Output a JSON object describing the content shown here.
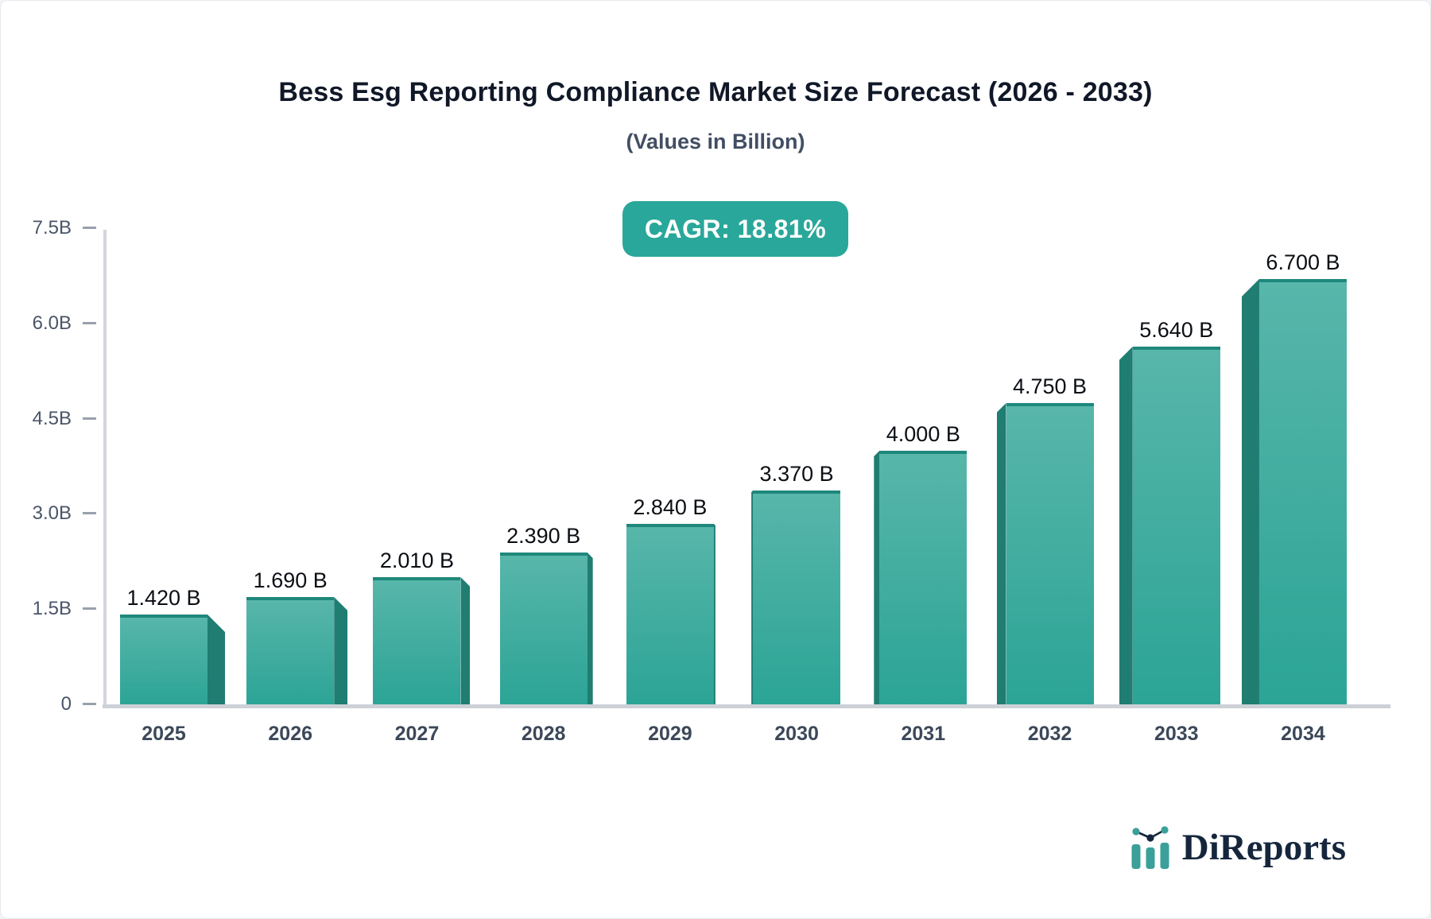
{
  "header": {
    "title": "Bess Esg Reporting Compliance Market Size Forecast (2026 - 2033)",
    "subtitle": "(Values in Billion)"
  },
  "badge": {
    "label": "CAGR: 18.81%"
  },
  "chart_data": {
    "type": "bar",
    "title": "Bess Esg Reporting Compliance Market Size Forecast (2026 - 2033)",
    "subtitle": "(Values in Billion)",
    "cagr": "18.81%",
    "categories": [
      "2025",
      "2026",
      "2027",
      "2028",
      "2029",
      "2030",
      "2031",
      "2032",
      "2033",
      "2034"
    ],
    "values": [
      1.42,
      1.69,
      2.01,
      2.39,
      2.84,
      3.37,
      4.0,
      4.75,
      5.64,
      6.7
    ],
    "value_labels": [
      "1.420 B",
      "1.690 B",
      "2.010 B",
      "2.390 B",
      "2.840 B",
      "3.370 B",
      "4.000 B",
      "4.750 B",
      "5.640 B",
      "6.700 B"
    ],
    "unit": "Billion",
    "xlabel": "",
    "ylabel": "",
    "ytick_labels": [
      "7.5B",
      "6.0B",
      "4.5B",
      "3.0B",
      "1.5B",
      "0"
    ],
    "ytick_values": [
      7.5,
      6.0,
      4.5,
      3.0,
      1.5,
      0
    ],
    "ylim": [
      0,
      7.5
    ],
    "grid": false,
    "legend": false,
    "colors": {
      "bar_front_top": "#58b6aa",
      "bar_front_bottom": "#2ba496",
      "bar_side": "#1f7d72",
      "bar_top_edge": "#1e887b",
      "badge_bg": "#29a79a",
      "axis": "#d2d6dc"
    }
  },
  "logo": {
    "text": "DiReports"
  }
}
